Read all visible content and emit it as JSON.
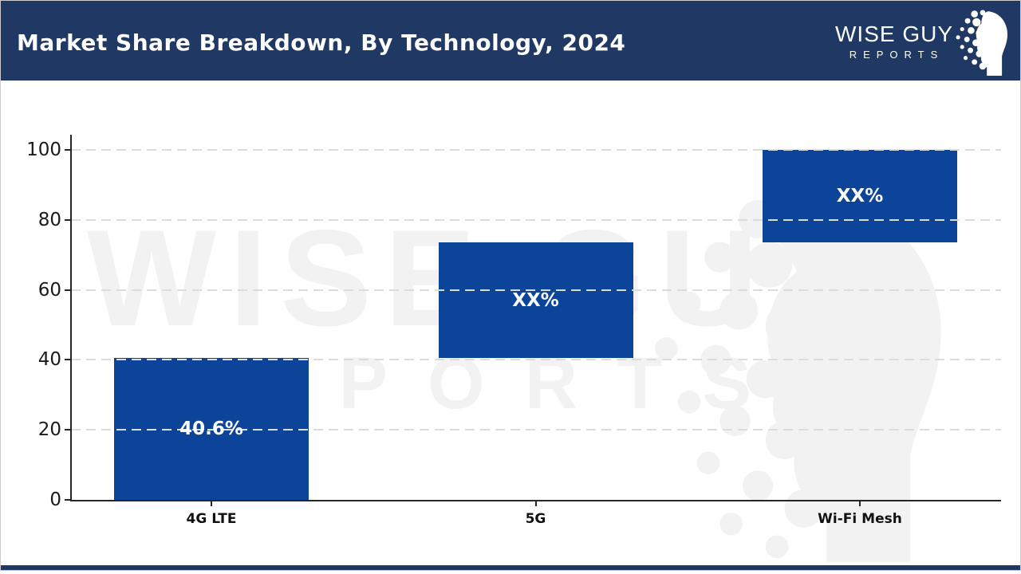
{
  "header": {
    "title": "Market Share Breakdown, By Technology, 2024",
    "logo": {
      "line1": "WISE GUY",
      "line2": "REPORTS"
    }
  },
  "watermark": {
    "line1": "WISE GUY",
    "line2": "REPORTS"
  },
  "colors": {
    "header_bg": "#1f3864",
    "bar_fill": "#0b4499",
    "bar_label_text": "#ffffff",
    "gridline": "#dcdcdc",
    "axis": "#262626",
    "watermark": "#f2f2f2"
  },
  "chart_data": {
    "type": "bar",
    "subtype": "floating-waterfall",
    "title": "Market Share Breakdown, By Technology, 2024",
    "categories": [
      "4G LTE",
      "5G",
      "Wi-Fi Mesh"
    ],
    "bar_starts": [
      0,
      40.6,
      73.5
    ],
    "bar_ends": [
      40.6,
      73.5,
      100
    ],
    "bar_labels": [
      "40.6%",
      "XX%",
      "XX%"
    ],
    "xlabel": "",
    "ylabel": "",
    "ylim": [
      0,
      100
    ],
    "yticks": [
      0,
      20,
      40,
      60,
      80,
      100
    ],
    "grid": "horizontal-dashed",
    "legend": "none"
  }
}
